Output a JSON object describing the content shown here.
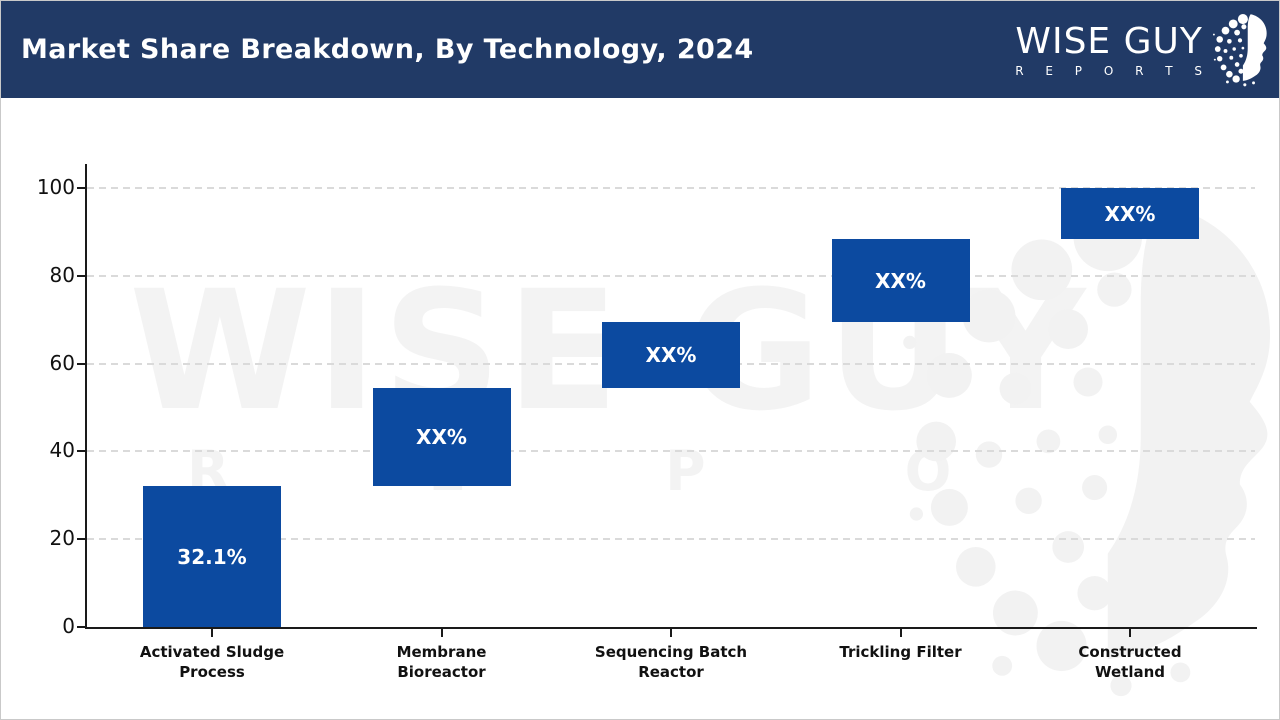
{
  "header": {
    "title": "Market Share Breakdown, By Technology, 2024",
    "background_color": "#213a66",
    "logo": {
      "wordmark": "WISE GUY",
      "subtext": "R E P O R T S",
      "icon": "dotted-face-profile"
    }
  },
  "watermark": {
    "wordmark": "WISE GUY",
    "subtext": "R E P O R T S",
    "icon": "dotted-face-profile"
  },
  "chart_data": {
    "type": "bar",
    "subtype": "waterfall-floating-bars",
    "title": "Market Share Breakdown, By Technology, 2024",
    "categories": [
      "Activated Sludge Process",
      "Membrane Bioreactor",
      "Sequencing Batch Reactor",
      "Trickling Filter",
      "Constructed Wetland"
    ],
    "category_label_lines": [
      [
        "Activated Sludge",
        "Process"
      ],
      [
        "Membrane",
        "Bioreactor"
      ],
      [
        "Sequencing Batch",
        "Reactor"
      ],
      [
        "Trickling Filter"
      ],
      [
        "Constructed",
        "Wetland"
      ]
    ],
    "segments": [
      {
        "category": "Activated Sludge Process",
        "start": 0,
        "end": 32.1,
        "label": "32.1%"
      },
      {
        "category": "Membrane Bioreactor",
        "start": 32.1,
        "end": 54.5,
        "label": "XX%"
      },
      {
        "category": "Sequencing Batch Reactor",
        "start": 54.5,
        "end": 69.4,
        "label": "XX%"
      },
      {
        "category": "Trickling Filter",
        "start": 69.4,
        "end": 88.3,
        "label": "XX%"
      },
      {
        "category": "Constructed Wetland",
        "start": 88.3,
        "end": 100,
        "label": "XX%"
      }
    ],
    "xlabel": "",
    "ylabel": "",
    "ylim": [
      0,
      100
    ],
    "yticks": [
      0,
      20,
      40,
      60,
      80,
      100
    ],
    "grid": "horizontal-dashed",
    "legend": "none",
    "bar_color": "#0c4aa0",
    "bar_label_color": "#ffffff"
  }
}
